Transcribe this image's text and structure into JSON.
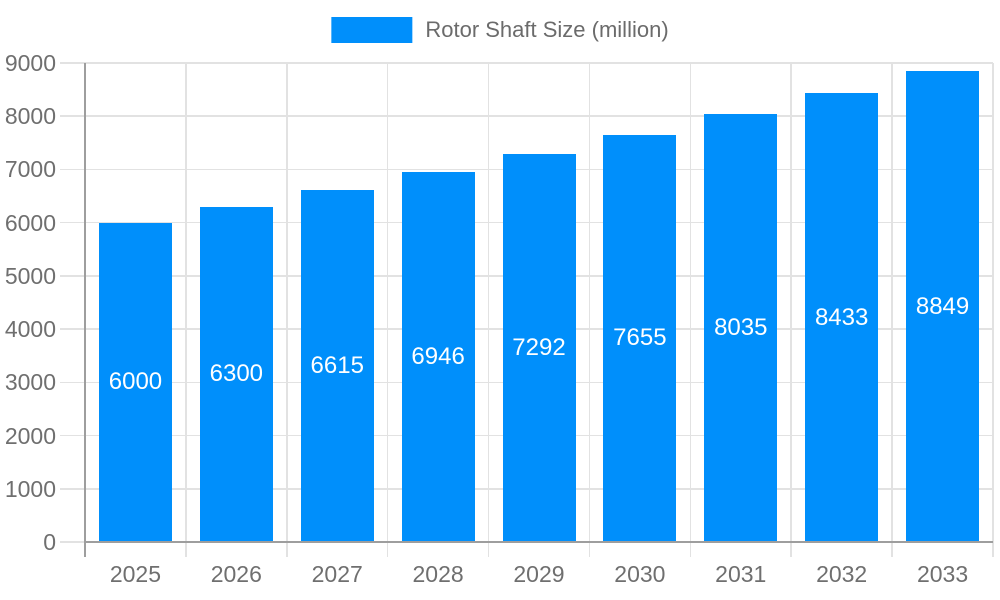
{
  "chart_data": {
    "type": "bar",
    "title": "Rotor Shaft Size (million)",
    "legend": {
      "position": "top",
      "items": [
        {
          "label": "Rotor Shaft Size (million)",
          "color": "#008FFB"
        }
      ]
    },
    "categories": [
      "2025",
      "2026",
      "2027",
      "2028",
      "2029",
      "2030",
      "2031",
      "2032",
      "2033"
    ],
    "series": [
      {
        "name": "Rotor Shaft Size (million)",
        "color": "#008FFB",
        "values": [
          6000,
          6300,
          6615,
          6946,
          7292,
          7655,
          8035,
          8433,
          8849
        ]
      }
    ],
    "xlabel": "",
    "ylabel": "",
    "ylim": [
      0,
      9000
    ],
    "yticks": [
      0,
      1000,
      2000,
      3000,
      4000,
      5000,
      6000,
      7000,
      8000,
      9000
    ],
    "grid": true,
    "data_labels": {
      "show": true,
      "position": "center",
      "color": "#FFFFFF"
    }
  },
  "colors": {
    "background": "#FFFFFF",
    "bar": "#008FFB",
    "axis_line": "#9E9E9E",
    "gridline": "#E2E2E2",
    "axis_label": "#6F6F6F",
    "legend_label": "#6B6B6B",
    "bar_label": "#FFFFFF"
  }
}
